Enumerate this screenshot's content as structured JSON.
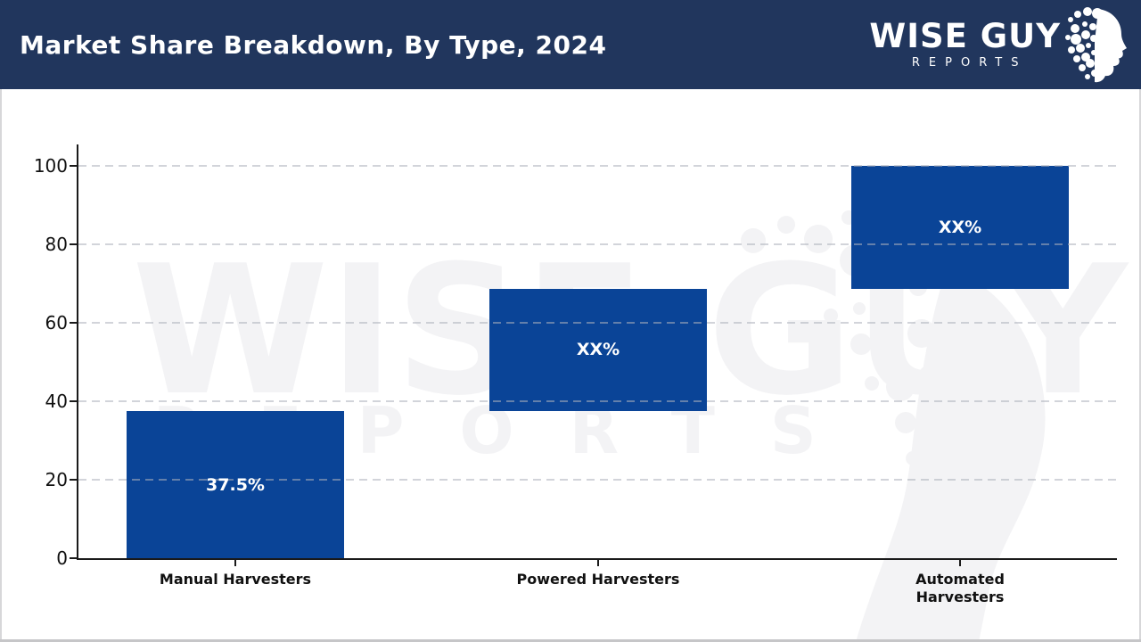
{
  "header": {
    "title": "Market Share Breakdown, By Type, 2024",
    "logo_line1": "WISE GUY",
    "logo_line2": "REPORTS"
  },
  "watermark": {
    "line1": "WISE GUY",
    "line2": "REPORTS"
  },
  "colors": {
    "header_bg": "#21365d",
    "bar": "#0a4497",
    "axis": "#1a1a1a",
    "grid_dash": "#d7d9dd",
    "watermark": "#f3f3f5",
    "title_text": "#ffffff",
    "bar_label_text": "#ffffff"
  },
  "chart_data": {
    "type": "bar",
    "variant": "floating-waterfall-percent",
    "title": "Market Share Breakdown, By Type, 2024",
    "categories": [
      "Manual Harvesters",
      "Powered Harvesters",
      "Automated\nHarvesters"
    ],
    "bars": [
      {
        "category": "Manual Harvesters",
        "base": 0,
        "top": 37.5,
        "label": "37.5%"
      },
      {
        "category": "Powered Harvesters",
        "base": 37.5,
        "top": 68.75,
        "label": "XX%"
      },
      {
        "category": "Automated Harvesters",
        "base": 68.75,
        "top": 100,
        "label": "XX%"
      }
    ],
    "yticks": [
      0,
      20,
      40,
      60,
      80,
      100
    ],
    "ylim": [
      0,
      105.5
    ],
    "grid": "dashed-horizontal-over-bars",
    "legend": "none",
    "bar_color": "#0a4497"
  }
}
